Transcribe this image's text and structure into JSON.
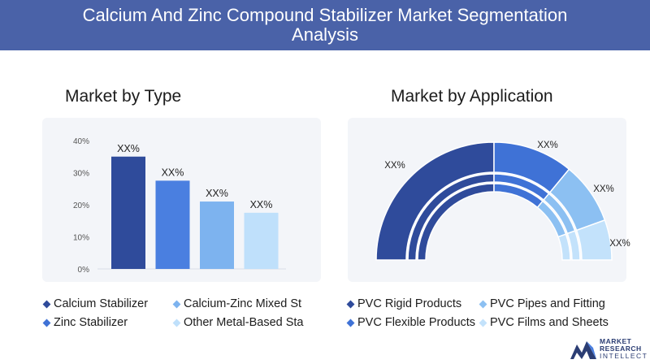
{
  "header": {
    "title": "Calcium And Zinc Compound Stabilizer Market Segmentation Analysis"
  },
  "left": {
    "title": "Market by Type"
  },
  "right": {
    "title": "Market by Application"
  },
  "logo": {
    "line1": "MARKET",
    "line2": "RESEARCH",
    "line3": "INTELLECT"
  },
  "chart_data": [
    {
      "type": "bar",
      "categories": [
        "Calcium Stabilizer",
        "Calcium-Zinc Mixed St",
        "Zinc Stabilizer",
        "Other Metal-Based Sta"
      ],
      "values": [
        35,
        27.5,
        21,
        17.5
      ],
      "data_labels": [
        "XX%",
        "XX%",
        "XX%",
        "XX%"
      ],
      "yticks": [
        "0%",
        "10%",
        "20%",
        "30%",
        "40%"
      ],
      "ylim": [
        0,
        40
      ],
      "colors": [
        "#2f4b9b",
        "#4a7fe0",
        "#7db3ef",
        "#bfe0fb"
      ],
      "legend": {
        "placement": "bottom",
        "entries": [
          "Calcium Stabilizer",
          "Calcium-Zinc Mixed St",
          "Zinc Stabilizer",
          "Other Metal-Based Sta"
        ],
        "colors": [
          "#2f4b9b",
          "#7db3ef",
          "#3f72d6",
          "#bfe0fb"
        ]
      }
    },
    {
      "type": "pie",
      "style": "half-donut",
      "categories": [
        "PVC Rigid Products",
        "PVC Flexible Products",
        "PVC Pipes and Fitting",
        "PVC Films and Sheets"
      ],
      "values": [
        50,
        22,
        17,
        11
      ],
      "data_labels": [
        "XX%",
        "XX%",
        "XX%",
        "XX%"
      ],
      "colors": [
        "#2f4b9b",
        "#3f72d6",
        "#8cc0f2",
        "#c3e2fb"
      ],
      "legend": {
        "placement": "bottom",
        "entries": [
          "PVC Rigid Products",
          "PVC Pipes and Fitting",
          "PVC Flexible Products",
          "PVC Films and Sheets"
        ],
        "colors": [
          "#2f4b9b",
          "#8cc0f2",
          "#3f72d6",
          "#c3e2fb"
        ]
      }
    }
  ]
}
